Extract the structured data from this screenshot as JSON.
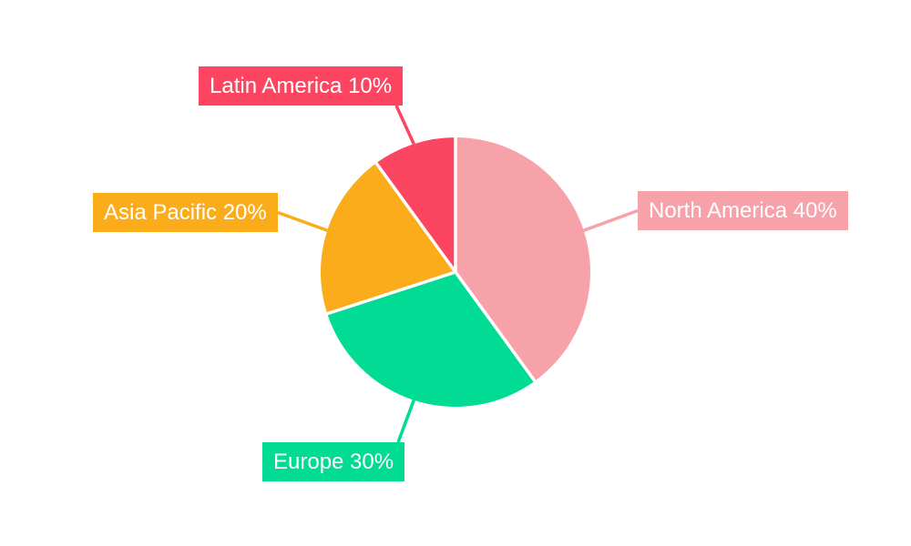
{
  "chart_data": {
    "type": "pie",
    "title": "",
    "unit": "%",
    "categories": [
      "North America",
      "Europe",
      "Asia Pacific",
      "Latin America"
    ],
    "values": [
      40,
      30,
      20,
      10
    ],
    "slices": [
      {
        "label": "North America",
        "value": 40,
        "display": "North America 40%",
        "color": "#F7A2A8"
      },
      {
        "label": "Europe",
        "value": 30,
        "display": "Europe 30%",
        "color": "#01DB93"
      },
      {
        "label": "Asia Pacific",
        "value": 20,
        "display": "Asia Pacific 20%",
        "color": "#FBAC1A"
      },
      {
        "label": "Latin America",
        "value": 10,
        "display": "Latin America 10%",
        "color": "#FC4561"
      }
    ],
    "start_angle": "12-oclock",
    "direction": "clockwise",
    "legend_position": "none",
    "background_color": "#FFFFFF",
    "label_text_color": "#FFFFFF",
    "slice_separator_color": "#FFFFFF"
  }
}
